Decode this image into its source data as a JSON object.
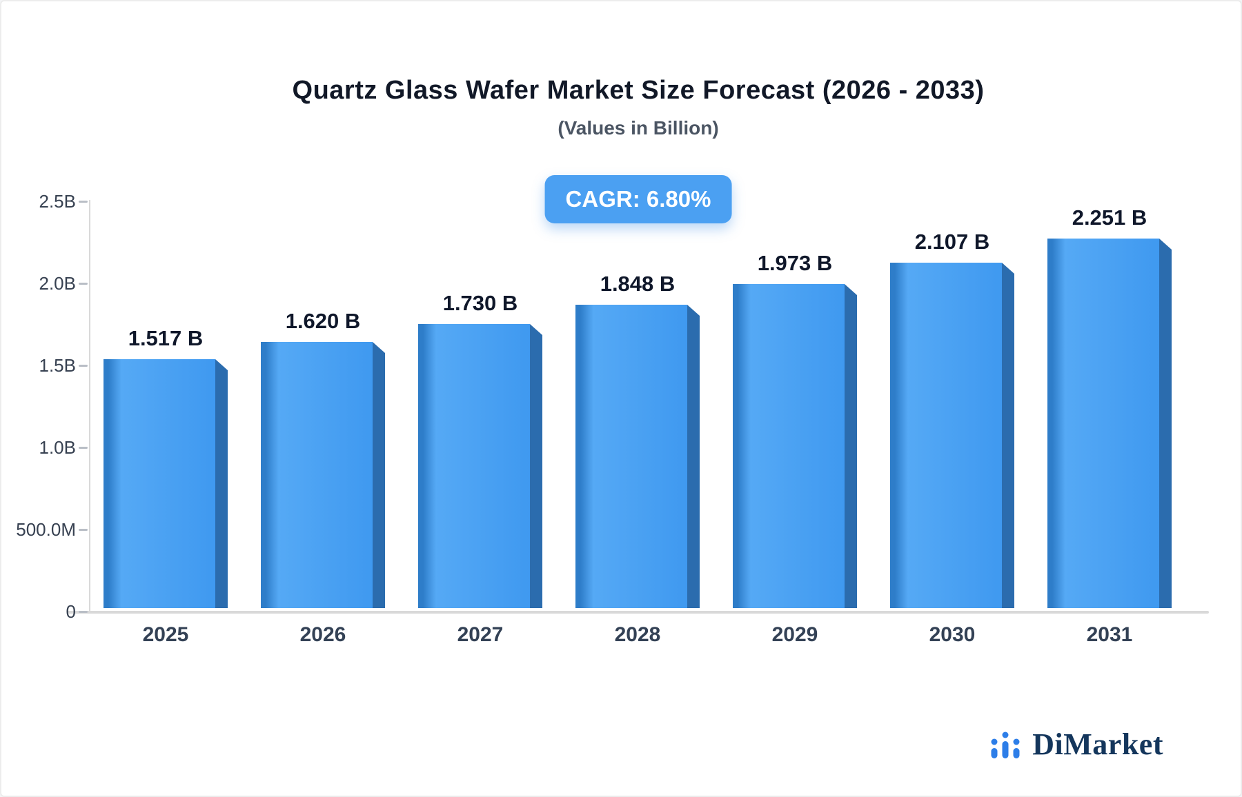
{
  "chart_data": {
    "type": "bar",
    "title": "Quartz Glass Wafer Market Size Forecast (2026 - 2033)",
    "subtitle": "(Values in Billion)",
    "cagr_badge": "CAGR: 6.80%",
    "categories": [
      "2025",
      "2026",
      "2027",
      "2028",
      "2029",
      "2030",
      "2031"
    ],
    "values": [
      1.517,
      1.62,
      1.73,
      1.848,
      1.973,
      2.107,
      2.251
    ],
    "value_labels": [
      "1.517 B",
      "1.620 B",
      "1.730 B",
      "1.848 B",
      "1.973 B",
      "2.107 B",
      "2.251 B"
    ],
    "unit": "Billion",
    "xlabel": "",
    "ylabel": "",
    "ylim": [
      0,
      2.5
    ],
    "y_ticks": [
      {
        "label": "2.5B",
        "value": 2.5
      },
      {
        "label": "2.0B",
        "value": 2.0
      },
      {
        "label": "1.5B",
        "value": 1.5
      },
      {
        "label": "1.0B",
        "value": 1.0
      },
      {
        "label": "500.0M",
        "value": 0.5
      },
      {
        "label": "0",
        "value": 0
      }
    ],
    "grid": false,
    "legend": "none",
    "colors": {
      "bar": "#3F99F0",
      "bar_light": "#55A9F5",
      "bar_edge": "#2E7DC9",
      "bar_side": "#2B6CAE",
      "badge": "#4BA0F2",
      "axis": "#D9D9D9",
      "brand_icon": "#2D7EE8",
      "brand_text": "#14365C"
    }
  },
  "brand": {
    "name": "DiMarket"
  }
}
